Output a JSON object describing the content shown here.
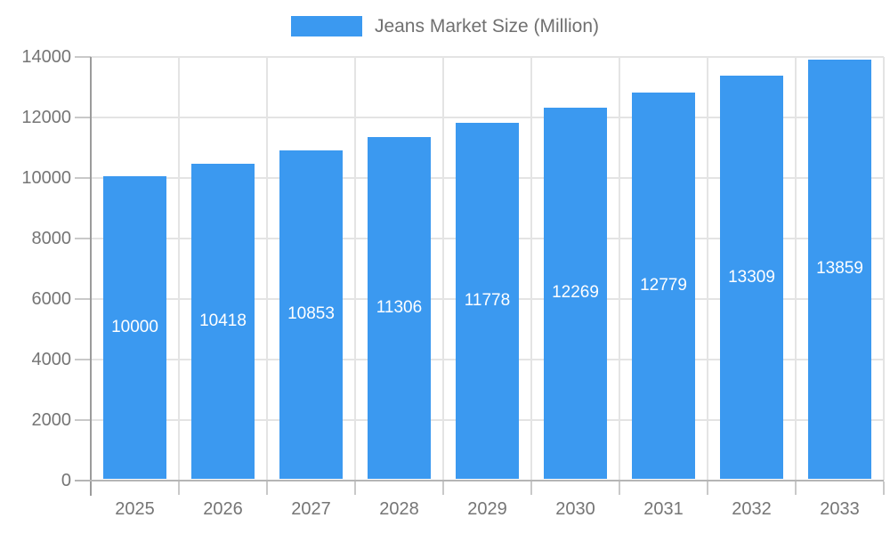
{
  "chart_data": {
    "type": "bar",
    "title": "",
    "legend_label": "Jeans Market Size (Million)",
    "legend_position": "top",
    "categories": [
      "2025",
      "2026",
      "2027",
      "2028",
      "2029",
      "2030",
      "2031",
      "2032",
      "2033"
    ],
    "series": [
      {
        "name": "Jeans Market Size (Million)",
        "values": [
          10000,
          10418,
          10853,
          11306,
          11778,
          12269,
          12779,
          13309,
          13859
        ]
      }
    ],
    "bar_value_labels": [
      "10000",
      "10418",
      "10853",
      "11306",
      "11778",
      "12269",
      "12779",
      "13309",
      "13859"
    ],
    "xlabel": "",
    "ylabel": "",
    "ylim": [
      0,
      14000
    ],
    "yticks": [
      0,
      2000,
      4000,
      6000,
      8000,
      10000,
      12000,
      14000
    ],
    "ytick_labels": [
      "0",
      "2000",
      "4000",
      "6000",
      "8000",
      "10000",
      "12000",
      "14000"
    ],
    "grid": true,
    "colors": {
      "bar": "#3B99F0",
      "bar_value_text": "#FFFFFF",
      "axis_text": "#757575",
      "legend_text": "#707070",
      "grid_line": "#E4E4E4",
      "tick_line": "#C9C9C9",
      "y_axis_line": "#9B9B9B",
      "x_axis_line": "#B5B5B5",
      "background": "#FFFFFF"
    }
  }
}
